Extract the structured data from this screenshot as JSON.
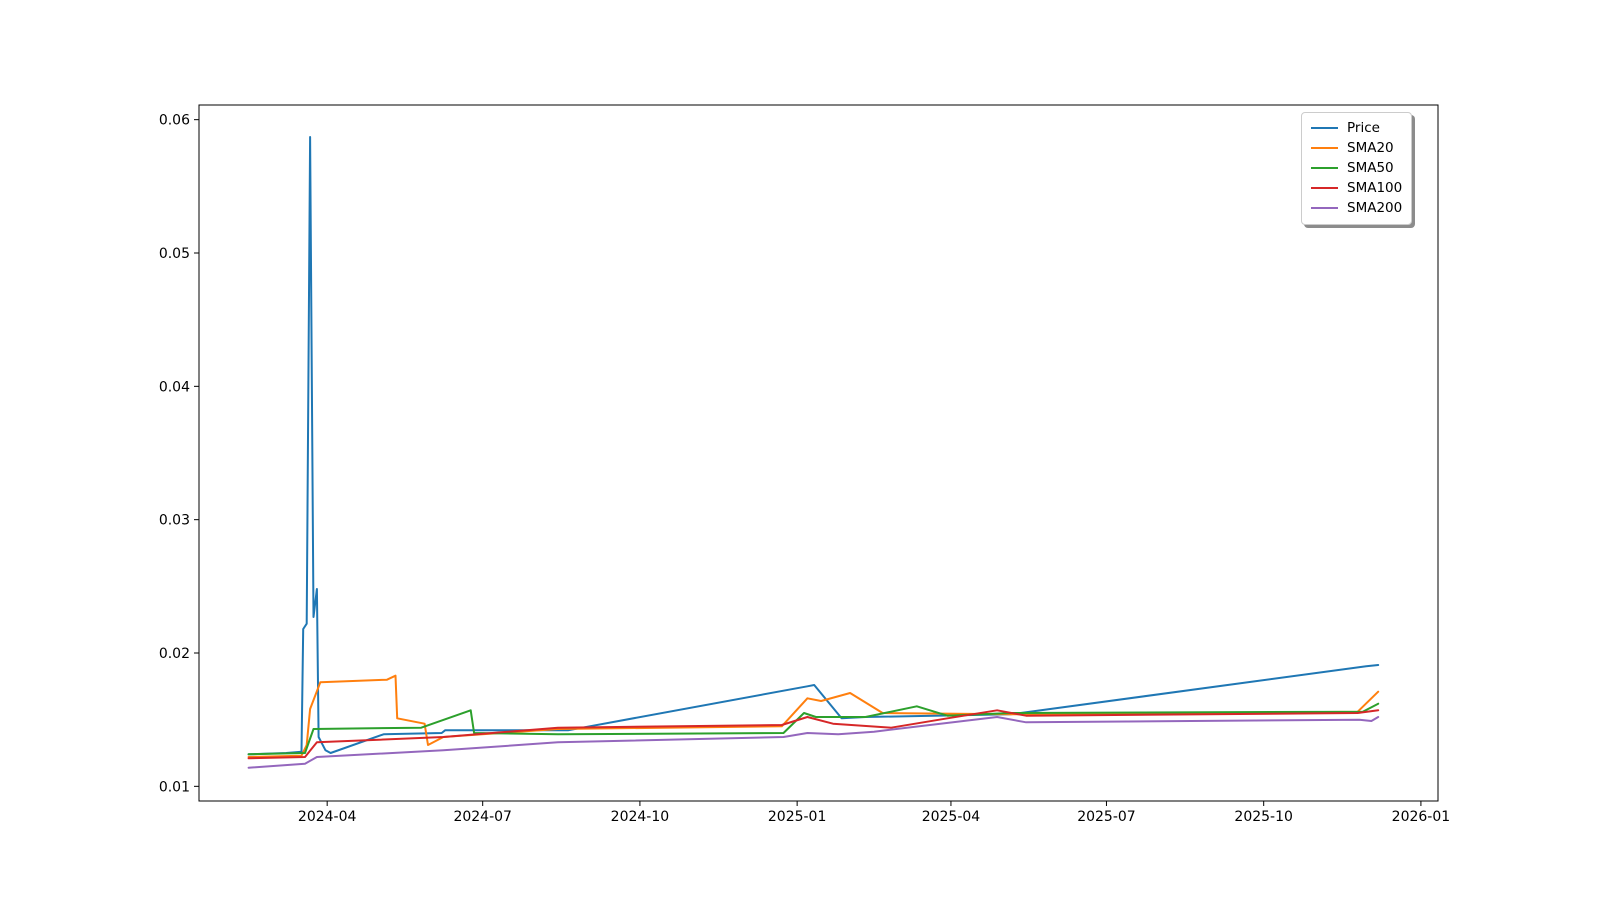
{
  "chart_data": {
    "type": "line",
    "title": "",
    "xlabel": "",
    "ylabel": "",
    "grid": false,
    "legend_position": "upper right",
    "x_tick_labels": [
      "2024-04",
      "2024-07",
      "2024-10",
      "2025-01",
      "2025-04",
      "2025-07",
      "2025-10",
      "2026-01"
    ],
    "y_tick_values": [
      0.01,
      0.02,
      0.03,
      0.04,
      0.05,
      0.06
    ],
    "xlim": [
      "2024-01-17",
      "2026-01-11"
    ],
    "ylim": [
      0.0089,
      0.0611
    ],
    "axis_color": "#000000",
    "background_color": "#ffffff",
    "series": [
      {
        "name": "Price",
        "color": "#1f77b4",
        "points": [
          [
            "2024-02-15",
            0.0124
          ],
          [
            "2024-03-08",
            0.0125
          ],
          [
            "2024-03-17",
            0.0126
          ],
          [
            "2024-03-18",
            0.0218
          ],
          [
            "2024-03-20",
            0.0222
          ],
          [
            "2024-03-22",
            0.0587
          ],
          [
            "2024-03-24",
            0.0227
          ],
          [
            "2024-03-26",
            0.0248
          ],
          [
            "2024-03-27",
            0.0137
          ],
          [
            "2024-03-31",
            0.0127
          ],
          [
            "2024-04-03",
            0.0125
          ],
          [
            "2024-05-04",
            0.0139
          ],
          [
            "2024-06-07",
            0.014
          ],
          [
            "2024-06-09",
            0.0142
          ],
          [
            "2024-08-20",
            0.0142
          ],
          [
            "2025-01-07",
            0.0175
          ],
          [
            "2025-01-11",
            0.0176
          ],
          [
            "2025-01-27",
            0.0151
          ],
          [
            "2025-02-10",
            0.0152
          ],
          [
            "2025-05-06",
            0.0154
          ],
          [
            "2025-11-30",
            0.019
          ],
          [
            "2025-12-07",
            0.0191
          ]
        ]
      },
      {
        "name": "SMA20",
        "color": "#ff7f0e",
        "points": [
          [
            "2024-02-15",
            0.0122
          ],
          [
            "2024-03-17",
            0.0123
          ],
          [
            "2024-03-20",
            0.0131
          ],
          [
            "2024-03-22",
            0.0158
          ],
          [
            "2024-03-28",
            0.0178
          ],
          [
            "2024-05-06",
            0.018
          ],
          [
            "2024-05-11",
            0.0183
          ],
          [
            "2024-05-12",
            0.0151
          ],
          [
            "2024-05-28",
            0.0147
          ],
          [
            "2024-05-30",
            0.0131
          ],
          [
            "2024-06-08",
            0.0137
          ],
          [
            "2024-08-14",
            0.0143
          ],
          [
            "2024-12-23",
            0.0145
          ],
          [
            "2025-01-07",
            0.0166
          ],
          [
            "2025-01-15",
            0.0164
          ],
          [
            "2025-02-01",
            0.017
          ],
          [
            "2025-02-20",
            0.0155
          ],
          [
            "2025-05-06",
            0.0154
          ],
          [
            "2025-11-25",
            0.0156
          ],
          [
            "2025-12-07",
            0.0171
          ]
        ]
      },
      {
        "name": "SMA50",
        "color": "#2ca02c",
        "points": [
          [
            "2024-02-15",
            0.0124
          ],
          [
            "2024-03-19",
            0.0125
          ],
          [
            "2024-03-24",
            0.0143
          ],
          [
            "2024-05-26",
            0.0144
          ],
          [
            "2024-06-24",
            0.0157
          ],
          [
            "2024-06-26",
            0.014
          ],
          [
            "2024-08-14",
            0.0139
          ],
          [
            "2024-12-24",
            0.014
          ],
          [
            "2025-01-05",
            0.0155
          ],
          [
            "2025-01-12",
            0.0152
          ],
          [
            "2025-02-10",
            0.0152
          ],
          [
            "2025-03-12",
            0.016
          ],
          [
            "2025-03-30",
            0.0153
          ],
          [
            "2025-05-06",
            0.0155
          ],
          [
            "2025-11-28",
            0.0156
          ],
          [
            "2025-12-07",
            0.0162
          ]
        ]
      },
      {
        "name": "SMA100",
        "color": "#d62728",
        "points": [
          [
            "2024-02-15",
            0.0121
          ],
          [
            "2024-03-19",
            0.0122
          ],
          [
            "2024-03-26",
            0.0133
          ],
          [
            "2024-06-08",
            0.0137
          ],
          [
            "2024-08-14",
            0.0144
          ],
          [
            "2024-12-23",
            0.0146
          ],
          [
            "2025-01-07",
            0.0152
          ],
          [
            "2025-01-22",
            0.0147
          ],
          [
            "2025-02-25",
            0.0144
          ],
          [
            "2025-03-30",
            0.0151
          ],
          [
            "2025-04-28",
            0.0157
          ],
          [
            "2025-05-15",
            0.0153
          ],
          [
            "2025-11-25",
            0.0155
          ],
          [
            "2025-12-07",
            0.0157
          ]
        ]
      },
      {
        "name": "SMA200",
        "color": "#9467bd",
        "points": [
          [
            "2024-02-15",
            0.0114
          ],
          [
            "2024-03-19",
            0.0117
          ],
          [
            "2024-03-26",
            0.0122
          ],
          [
            "2024-06-08",
            0.0127
          ],
          [
            "2024-08-14",
            0.0133
          ],
          [
            "2024-12-24",
            0.0137
          ],
          [
            "2025-01-07",
            0.014
          ],
          [
            "2025-01-25",
            0.0139
          ],
          [
            "2025-02-15",
            0.0141
          ],
          [
            "2025-04-28",
            0.0152
          ],
          [
            "2025-05-15",
            0.0148
          ],
          [
            "2025-11-26",
            0.015
          ],
          [
            "2025-12-03",
            0.0149
          ],
          [
            "2025-12-07",
            0.0152
          ]
        ]
      }
    ],
    "legend": {
      "entries": [
        "Price",
        "SMA20",
        "SMA50",
        "SMA100",
        "SMA200"
      ]
    }
  }
}
